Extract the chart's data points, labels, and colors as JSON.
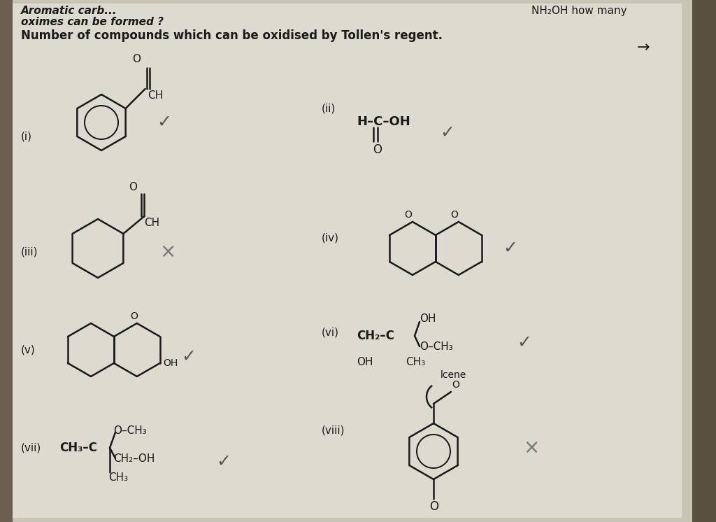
{
  "bg_color": "#c8c5b5",
  "paper_color": "#dddad0",
  "text_color": "#1a1a1a",
  "line_color": "#1a1a1a",
  "lw": 1.8,
  "header": {
    "line1": "Aromatic carb...",
    "line2": "oximes can be formed ?",
    "line3": "Number of compounds which can be oxidised by Tollen's regent.",
    "nh2oh": "NH₂OH how many",
    "arrow": "→"
  },
  "check": "✓",
  "cross": "×"
}
